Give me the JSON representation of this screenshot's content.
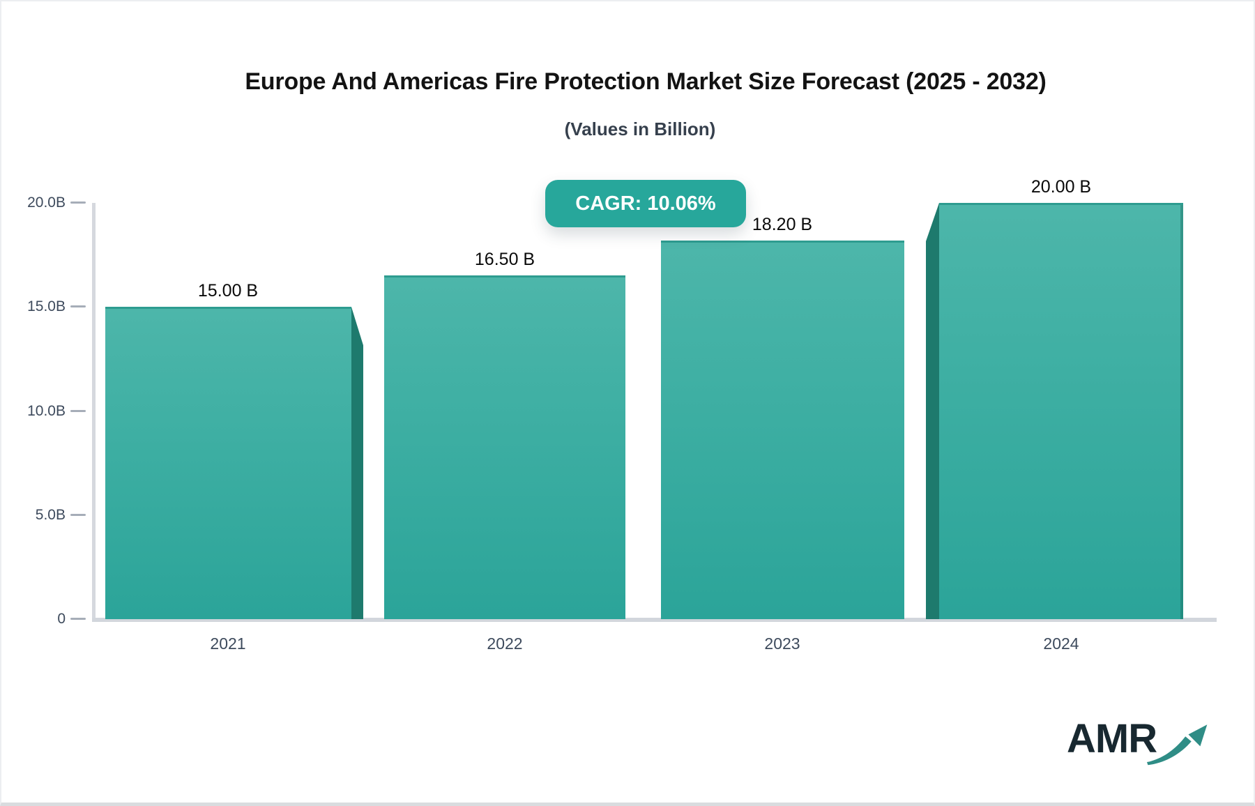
{
  "header": {
    "title": "Europe And Americas Fire Protection Market Size Forecast (2025 - 2032)",
    "subtitle": "(Values in Billion)"
  },
  "badge": {
    "label": "CAGR: 10.06%",
    "background": "#27a79b",
    "text_color": "#ffffff"
  },
  "chart_data": {
    "type": "bar",
    "title": "Europe And Americas Fire Protection Market Size Forecast (2025 - 2032)",
    "subtitle": "(Values in Billion)",
    "annotation": "CAGR: 10.06%",
    "categories": [
      "2021",
      "2022",
      "2023",
      "2024"
    ],
    "values": [
      15.0,
      16.5,
      18.2,
      20.0
    ],
    "value_labels": [
      "15.00 B",
      "16.50 B",
      "18.20 B",
      "20.00 B"
    ],
    "unit": "Billion",
    "xlabel": "",
    "ylabel": "",
    "ylim": [
      0,
      20
    ],
    "yticks": [
      {
        "label": "20.0B",
        "value": 20
      },
      {
        "label": "15.0B",
        "value": 15
      },
      {
        "label": "10.0B",
        "value": 10
      },
      {
        "label": "5.0B",
        "value": 5
      },
      {
        "label": "0",
        "value": 0
      }
    ],
    "grid": false,
    "legend": "none",
    "bar_color_top": "#4db6aa",
    "bar_color_bottom": "#2ba499",
    "bar_side_color": "#1e7a6d",
    "axis_color": "#d5d8de",
    "tick_text_color": "#3d4a5c"
  },
  "logo": {
    "text": "AMR",
    "text_color": "#182830",
    "arrow_color": "#2f8d86"
  }
}
